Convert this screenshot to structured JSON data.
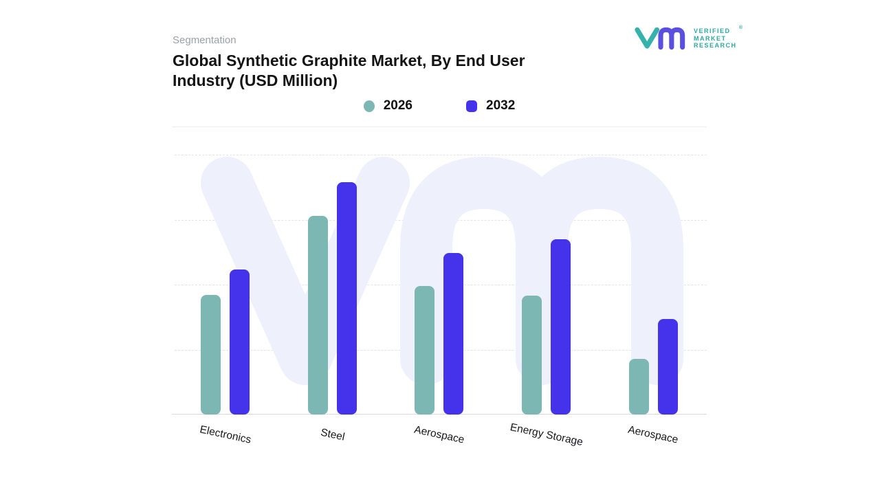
{
  "header": {
    "eyebrow": "Segmentation",
    "title": "Global Synthetic Graphite Market, By End User Industry (USD Million)"
  },
  "brand": {
    "name_lines": [
      "VERIFIED",
      "MARKET",
      "RESEARCH"
    ],
    "registered_mark": "®",
    "glyph_teal": "#35b2ab",
    "glyph_purple": "#5a50e0",
    "text_color": "#2ba9a4"
  },
  "legend": {
    "items": [
      {
        "label": "2026",
        "color": "#7cb7b4",
        "shape": "circle"
      },
      {
        "label": "2032",
        "color": "#4533eb",
        "shape": "rounded-square"
      }
    ]
  },
  "chart_data": {
    "type": "bar",
    "title": "Global Synthetic Graphite Market, By End User Industry (USD Million)",
    "categories": [
      "Electronics",
      "Steel",
      "Aerospace",
      "Energy Storage",
      "Aerospace"
    ],
    "series": [
      {
        "name": "2026",
        "color": "#7cb7b4",
        "values": [
          175,
          291,
          188,
          174,
          81
        ]
      },
      {
        "name": "2032",
        "color": "#4533eb",
        "values": [
          212,
          340,
          236,
          256,
          140
        ]
      }
    ],
    "xlabel": "",
    "ylabel": "",
    "ylim": [
      0,
      380
    ],
    "grid": "horizontal-dashed",
    "legend_position": "top-center",
    "watermark": "VMR logo glyph"
  }
}
